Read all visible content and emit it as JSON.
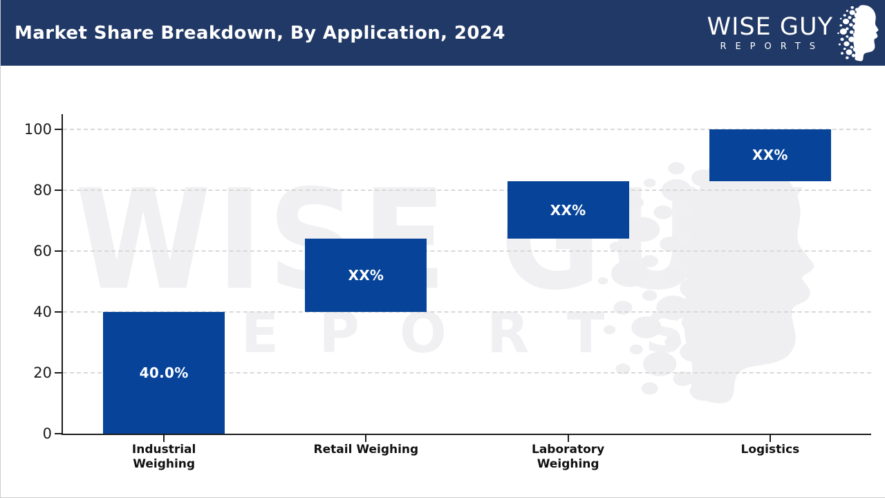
{
  "page": {
    "border_color": "#cccccc",
    "background": "#ffffff"
  },
  "header": {
    "background": "#213966",
    "title": "Market Share Breakdown, By Application, 2024",
    "logo": {
      "primary": "WISE GUY",
      "secondary": "REPORTS"
    }
  },
  "watermark": {
    "primary": "WISE GUY",
    "secondary": "REPORTS",
    "color": "#f0f0f2"
  },
  "chart_data": {
    "type": "bar",
    "subtype": "waterfall-stacked",
    "title": "Market Share Breakdown, By Application, 2024",
    "categories": [
      "Industrial Weighing",
      "Retail Weighing",
      "Laboratory Weighing",
      "Logistics"
    ],
    "segments": [
      {
        "category": "Industrial Weighing",
        "start": 0,
        "end": 40,
        "value": 40.0,
        "data_label": "40.0%"
      },
      {
        "category": "Retail Weighing",
        "start": 40,
        "end": 64,
        "value": 24.0,
        "data_label": "XX%"
      },
      {
        "category": "Laboratory Weighing",
        "start": 64,
        "end": 83,
        "value": 19.0,
        "data_label": "XX%"
      },
      {
        "category": "Logistics",
        "start": 83,
        "end": 100,
        "value": 17.0,
        "data_label": "XX%"
      }
    ],
    "xlabel": "",
    "ylabel": "",
    "y_ticks": [
      0,
      20,
      40,
      60,
      80,
      100
    ],
    "ylim": [
      0,
      105
    ],
    "legend": "none",
    "grid": {
      "axis": "y",
      "style": "dashed",
      "color": "#d8d8d8"
    },
    "bar_color": "#074499",
    "axis_color": "#1a1a1a",
    "bar_label_color": "#ffffff",
    "category_label_color": "#111111"
  }
}
